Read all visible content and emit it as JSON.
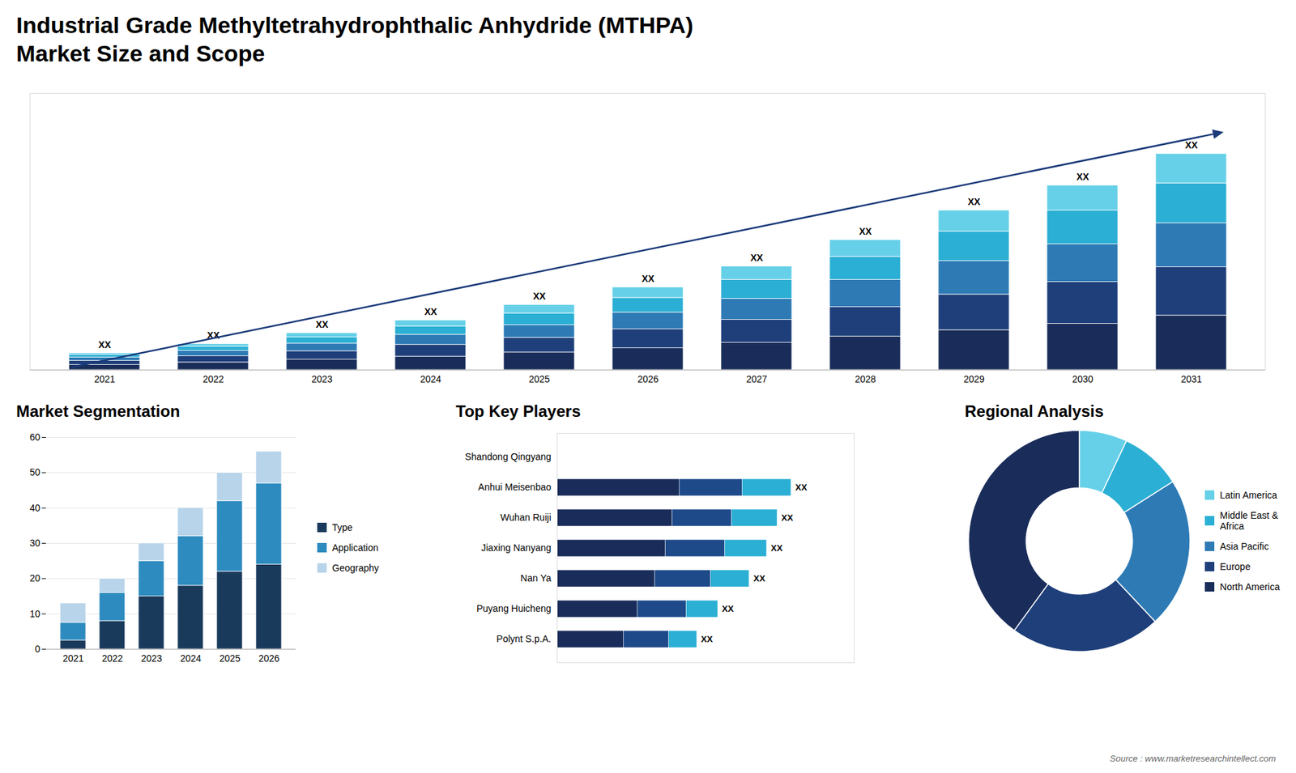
{
  "chart_data": [
    {
      "type": "bar",
      "title": "Industrial Grade Methyltetrahydrophthalic Anhydride (MTHPA)",
      "subtitle": "Market Size and Scope",
      "caption": "Source : www.marketresearchintellect.com",
      "stacked": true,
      "categories": [
        "2021",
        "2022",
        "2023",
        "2024",
        "2025",
        "2026",
        "2027",
        "2028",
        "2029",
        "2030",
        "2031"
      ],
      "series": [
        {
          "color": "#1a2d5a",
          "values": [
            1.2,
            1.8,
            2.5,
            3.2,
            4.2,
            5.2,
            6.5,
            8.0,
            9.5,
            11.0,
            13.0
          ]
        },
        {
          "color": "#1e3f7a",
          "values": [
            1.0,
            1.5,
            2.0,
            2.8,
            3.5,
            4.5,
            5.5,
            7.0,
            8.5,
            10.0,
            11.5
          ]
        },
        {
          "color": "#2d7ab5",
          "values": [
            0.8,
            1.3,
            1.8,
            2.4,
            3.0,
            4.0,
            5.0,
            6.5,
            8.0,
            9.0,
            10.5
          ]
        },
        {
          "color": "#2bafd4",
          "values": [
            0.6,
            1.0,
            1.5,
            2.0,
            2.8,
            3.5,
            4.5,
            5.5,
            7.0,
            8.0,
            9.5
          ]
        },
        {
          "color": "#66d0e8",
          "values": [
            0.4,
            0.6,
            1.0,
            1.4,
            2.0,
            2.5,
            3.2,
            4.0,
            5.0,
            6.0,
            7.0
          ]
        }
      ],
      "ylim": [
        0,
        65.92
      ],
      "tick_labels": "x",
      "annotations": [
        {
          "category": "2021",
          "text": "XX"
        },
        {
          "category": "2022",
          "text": "XX"
        },
        {
          "category": "2023",
          "text": "XX"
        },
        {
          "category": "2024",
          "text": "XX"
        },
        {
          "category": "2025",
          "text": "XX"
        },
        {
          "category": "2026",
          "text": "XX"
        },
        {
          "category": "2027",
          "text": "XX"
        },
        {
          "category": "2028",
          "text": "XX"
        },
        {
          "category": "2029",
          "text": "XX"
        },
        {
          "category": "2030",
          "text": "XX"
        },
        {
          "category": "2031",
          "text": "XX"
        }
      ]
    },
    {
      "type": "bar",
      "title": "Market Segmentation",
      "stacked": true,
      "categories": [
        "2021",
        "2022",
        "2023",
        "2024",
        "2025",
        "2026"
      ],
      "series": [
        {
          "name": "Type",
          "color": "#1a3a5c",
          "values": [
            2.5,
            8.0,
            15.0,
            18.0,
            22.0,
            24.0
          ]
        },
        {
          "name": "Application",
          "color": "#2d8bbf",
          "values": [
            5.0,
            8.0,
            10.0,
            14.0,
            20.0,
            23.0
          ]
        },
        {
          "name": "Geography",
          "color": "#b8d4ea",
          "values": [
            5.5,
            4.0,
            5.0,
            8.0,
            8.0,
            9.0
          ]
        }
      ],
      "ylim": [
        0,
        60
      ],
      "yticks": [
        0,
        10,
        20,
        30,
        40,
        50,
        60
      ],
      "grid": true,
      "legend": "right"
    },
    {
      "type": "bar",
      "title": "Top Key Players",
      "orientation": "horizontal",
      "stacked": true,
      "categories": [
        "Shandong Qingyang",
        "Anhui Meisenbao",
        "Wuhan Ruiji",
        "Jiaxing Nanyang",
        "Nan Ya",
        "Puyang Huicheng",
        "Polynt S.p.A."
      ],
      "series": [
        {
          "color": "#1a2d5a",
          "values": [
            0,
            35,
            33,
            31,
            28,
            23,
            19
          ]
        },
        {
          "color": "#1e4a8a",
          "values": [
            0,
            18,
            17,
            17,
            16,
            14,
            13
          ]
        },
        {
          "color": "#2bafd4",
          "values": [
            0,
            14,
            13,
            12,
            11,
            9,
            8
          ]
        }
      ],
      "xlim": [
        0,
        85
      ],
      "tick_labels": "y",
      "annotations": [
        {
          "category": "Anhui Meisenbao",
          "text": "XX"
        },
        {
          "category": "Wuhan Ruiji",
          "text": "XX"
        },
        {
          "category": "Jiaxing Nanyang",
          "text": "XX"
        },
        {
          "category": "Nan Ya",
          "text": "XX"
        },
        {
          "category": "Puyang Huicheng",
          "text": "XX"
        },
        {
          "category": "Polynt S.p.A.",
          "text": "XX"
        }
      ]
    },
    {
      "type": "pie",
      "title": "Regional Analysis",
      "categories": [
        "Latin America",
        "Middle East &\nAfrica",
        "Asia Pacific",
        "Europe",
        "North America"
      ],
      "values": [
        7,
        9,
        22,
        22,
        40
      ],
      "colors": [
        "#66d0e8",
        "#2bafd4",
        "#2d7ab5",
        "#1e3f7a",
        "#1a2d5a"
      ],
      "legend": "right"
    }
  ]
}
